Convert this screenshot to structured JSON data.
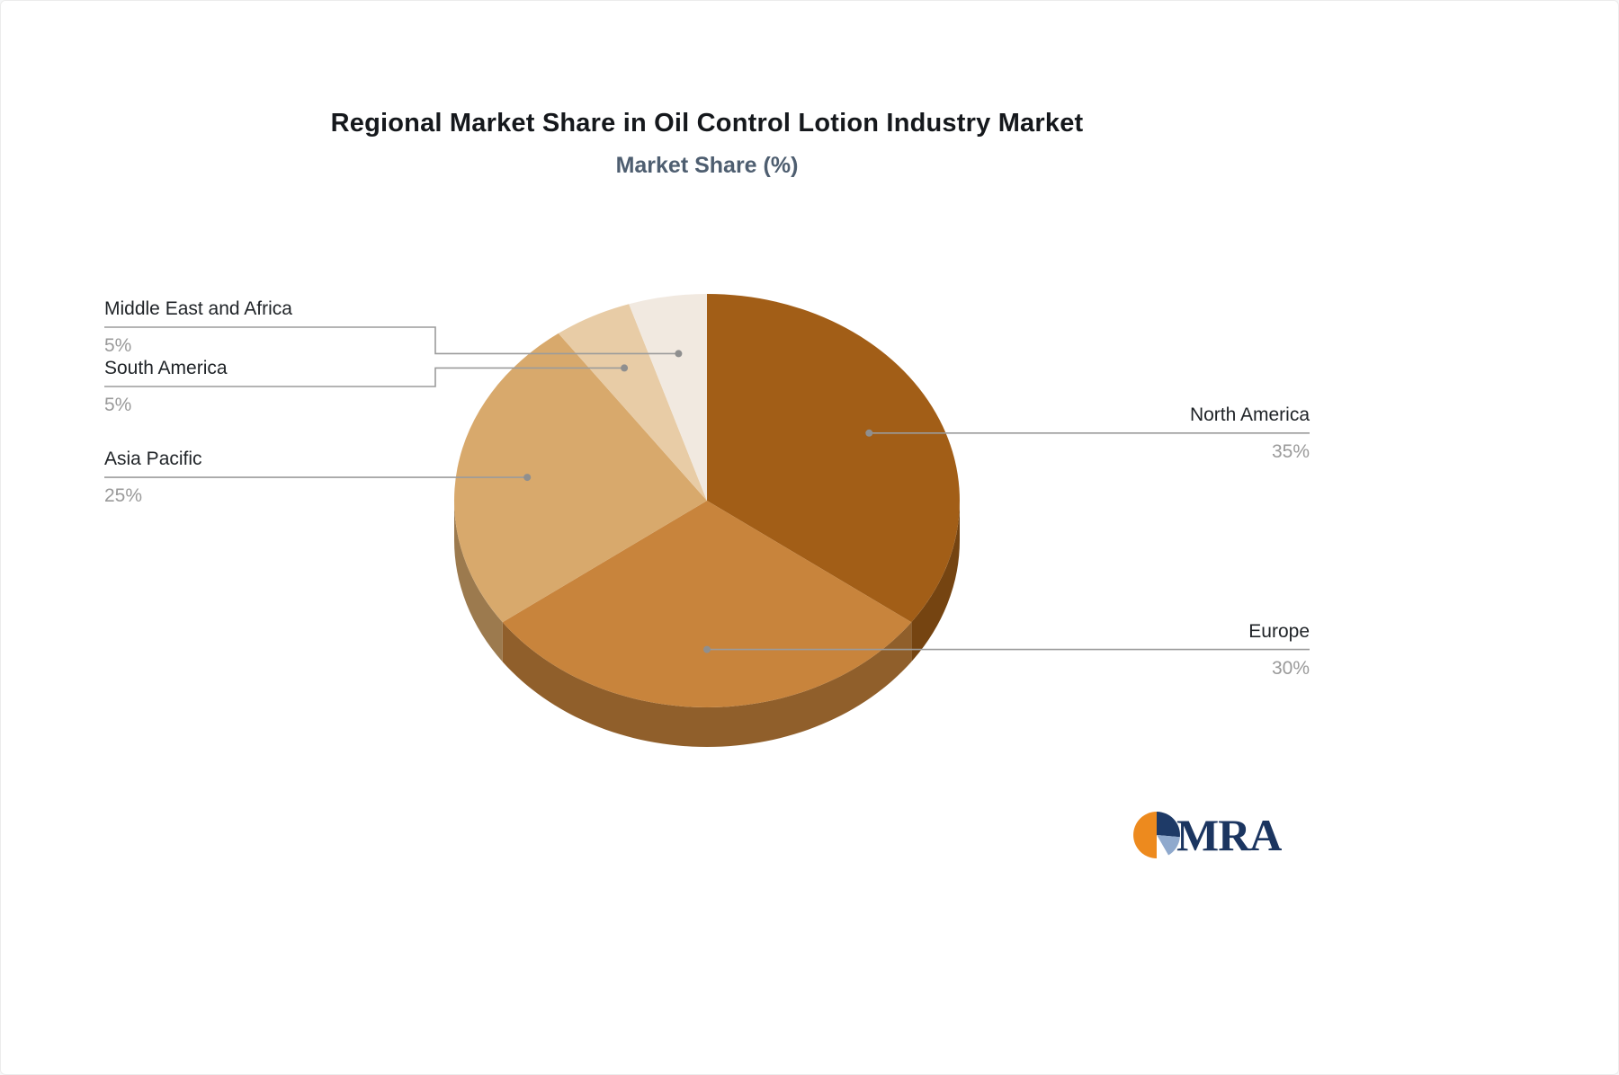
{
  "title": "Regional Market Share in Oil Control Lotion Industry Market",
  "subtitle": "Market Share (%)",
  "logo": {
    "text": "MRA",
    "colors": {
      "orange": "#ed8a1e",
      "navy": "#1e3a67",
      "lightblue": "#8fa9cd",
      "white": "#ffffff",
      "text_navy": "#1b3560"
    }
  },
  "chart_data": {
    "type": "pie",
    "style": "3d",
    "title": "Regional Market Share in Oil Control Lotion Industry Market",
    "subtitle": "Market Share (%)",
    "unit": "%",
    "legend": "none",
    "labels": [
      "North America",
      "Europe",
      "Asia Pacific",
      "South America",
      "Middle East and Africa"
    ],
    "values": [
      35,
      30,
      25,
      5,
      5
    ],
    "colors": [
      "#a25e17",
      "#c8843c",
      "#d8a96c",
      "#e8cca6",
      "#f1e9e0"
    ],
    "leader_line_color": "#9b9b9b",
    "label_text_color": "#1f2327",
    "value_text_color": "#9a9a9a"
  }
}
